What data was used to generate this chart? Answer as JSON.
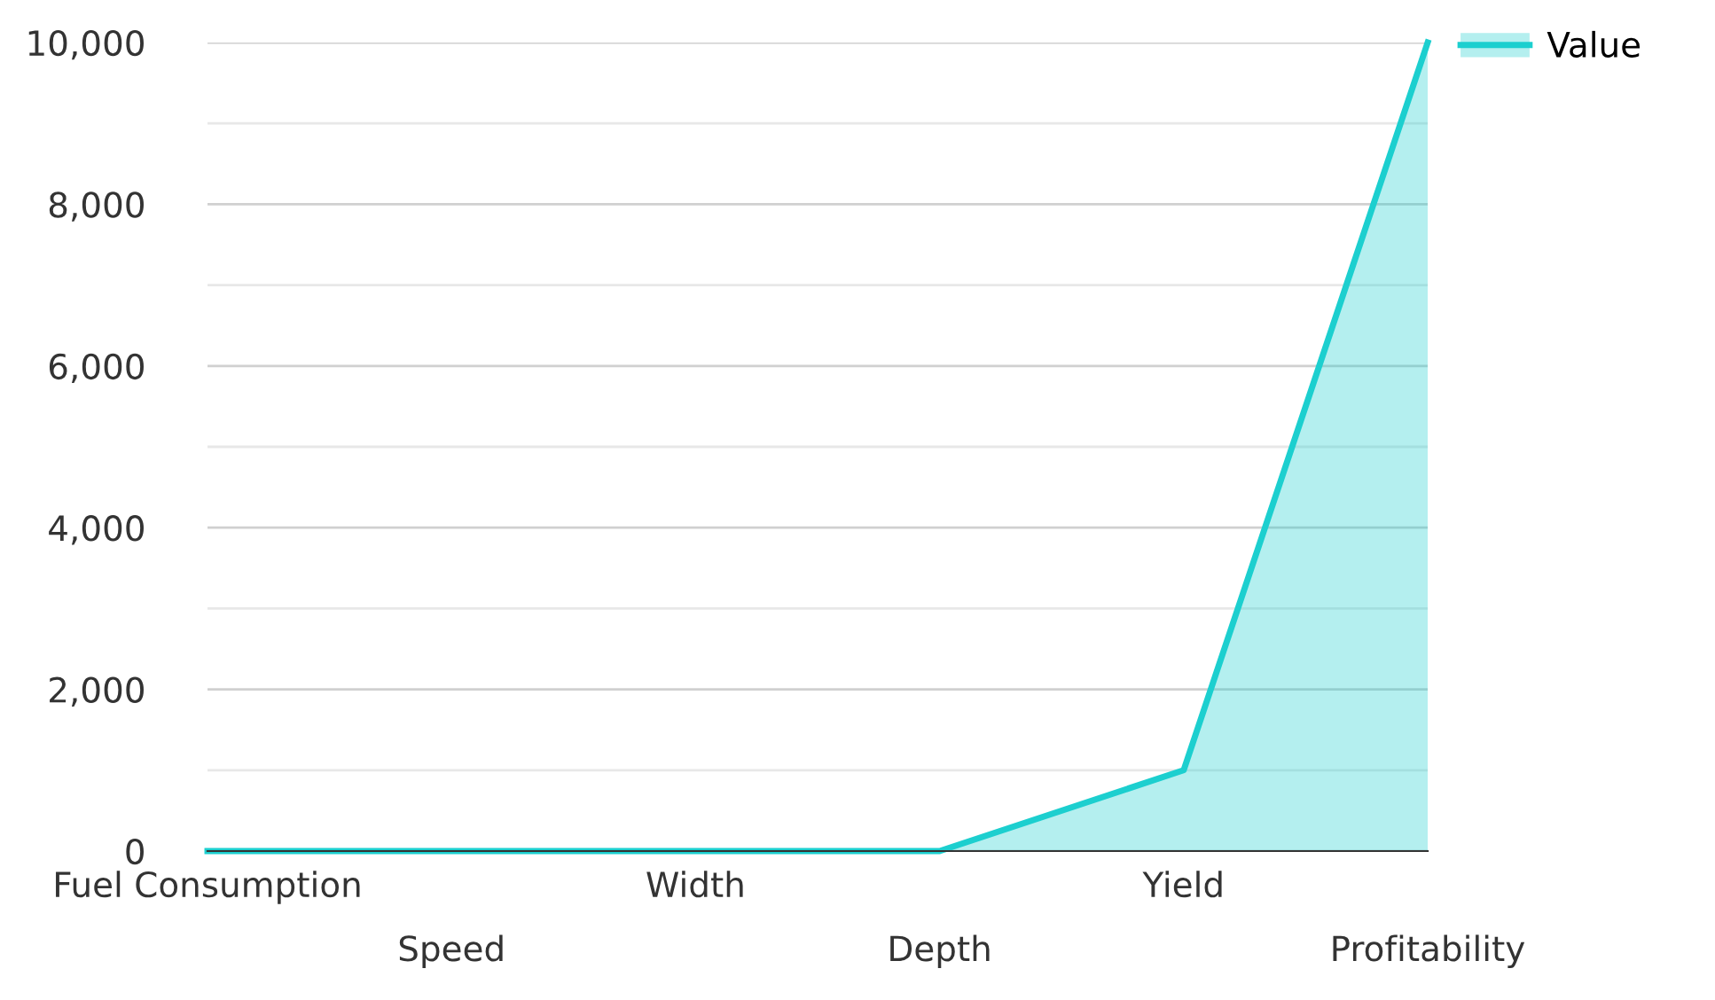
{
  "chart_data": {
    "type": "area",
    "categories": [
      "Fuel Consumption",
      "Speed",
      "Width",
      "Depth",
      "Yield",
      "Profitability"
    ],
    "series": [
      {
        "name": "Value",
        "color": "#1ccfcf",
        "values": [
          0,
          0,
          0,
          0,
          1000,
          10000
        ]
      }
    ],
    "ylim": [
      0,
      10000
    ],
    "yticks": [
      0,
      {
        "value": 1000,
        "label": null
      },
      {
        "value": 2000,
        "label": "2,000"
      },
      {
        "value": 3000,
        "label": null
      },
      {
        "value": 4000,
        "label": "4,000"
      },
      {
        "value": 5000,
        "label": null
      },
      {
        "value": 6000,
        "label": "6,000"
      },
      {
        "value": 7000,
        "label": null
      },
      {
        "value": 8000,
        "label": "8,000"
      },
      {
        "value": 9000,
        "label": null
      },
      {
        "value": 10000,
        "label": "10,000"
      }
    ],
    "grid": "y",
    "legend": "top right"
  }
}
